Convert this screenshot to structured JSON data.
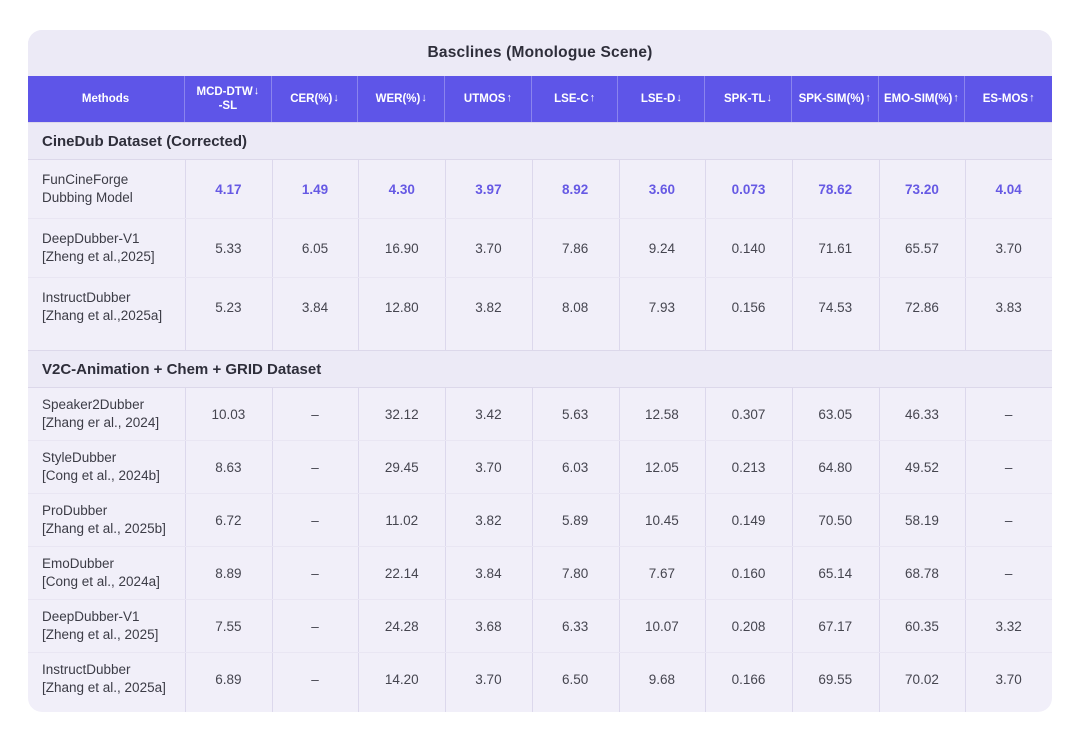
{
  "title": "Basclines (Monologue Scene)",
  "columns": [
    {
      "label": "Methods",
      "arrow": ""
    },
    {
      "label": "MCD-DTW",
      "label2": "-SL",
      "arrow": "↓"
    },
    {
      "label": "CER(%)",
      "arrow": " ↓"
    },
    {
      "label": "WER(%)",
      "arrow": " ↓"
    },
    {
      "label": "UTMOS",
      "arrow": "↑"
    },
    {
      "label": "LSE-C",
      "arrow": "↑"
    },
    {
      "label": "LSE-D",
      "arrow": " ↓"
    },
    {
      "label": "SPK-TL",
      "arrow": "↓"
    },
    {
      "label": "SPK-SIM(%)",
      "arrow": "↑"
    },
    {
      "label": "EMO-SIM(%)",
      "arrow": "↑"
    },
    {
      "label": "ES-MOS",
      "arrow": "↑"
    }
  ],
  "sections": [
    {
      "header": "CineDub Dataset (Corrected)",
      "rows": [
        {
          "name": "FunCineForge",
          "cite": "Dubbing Model",
          "highlight": true,
          "values": [
            "4.17",
            "1.49",
            "4.30",
            "3.97",
            "8.92",
            "3.60",
            "0.073",
            "78.62",
            "73.20",
            "4.04"
          ]
        },
        {
          "name": "DeepDubber-V1",
          "cite": "[Zheng et al.,2025]",
          "highlight": false,
          "values": [
            "5.33",
            "6.05",
            "16.90",
            "3.70",
            "7.86",
            "9.24",
            "0.140",
            "71.61",
            "65.57",
            "3.70"
          ]
        },
        {
          "name": "InstructDubber",
          "cite": "[Zhang et al.,2025a]",
          "highlight": false,
          "values": [
            "5.23",
            "3.84",
            "12.80",
            "3.82",
            "8.08",
            "7.93",
            "0.156",
            "74.53",
            "72.86",
            "3.83"
          ]
        }
      ]
    },
    {
      "header": "V2C-Animation + Chem + GRID Dataset",
      "rows": [
        {
          "name": "Speaker2Dubber",
          "cite": "[Zhang er al., 2024]",
          "highlight": false,
          "values": [
            "10.03",
            "–",
            "32.12",
            "3.42",
            "5.63",
            "12.58",
            "0.307",
            "63.05",
            "46.33",
            "–"
          ]
        },
        {
          "name": "StyleDubber",
          "cite": "[Cong et al., 2024b]",
          "highlight": false,
          "values": [
            "8.63",
            "–",
            "29.45",
            "3.70",
            "6.03",
            "12.05",
            "0.213",
            "64.80",
            "49.52",
            "–"
          ]
        },
        {
          "name": "ProDubber",
          "cite": "[Zhang et al., 2025b]",
          "highlight": false,
          "values": [
            "6.72",
            "–",
            "11.02",
            "3.82",
            "5.89",
            "10.45",
            "0.149",
            "70.50",
            "58.19",
            "–"
          ]
        },
        {
          "name": "EmoDubber",
          "cite": "[Cong et al., 2024a]",
          "highlight": false,
          "values": [
            "8.89",
            "–",
            "22.14",
            "3.84",
            "7.80",
            "7.67",
            "0.160",
            "65.14",
            "68.78",
            "–"
          ]
        },
        {
          "name": "DeepDubber-V1",
          "cite": "[Zheng et al., 2025]",
          "highlight": false,
          "values": [
            "7.55",
            "–",
            "24.28",
            "3.68",
            "6.33",
            "10.07",
            "0.208",
            "67.17",
            "60.35",
            "3.32"
          ]
        },
        {
          "name": "InstructDubber",
          "cite": "[Zhang et al., 2025a]",
          "highlight": false,
          "values": [
            "6.89",
            "–",
            "14.20",
            "3.70",
            "6.50",
            "9.68",
            "0.166",
            "69.55",
            "70.02",
            "3.70"
          ]
        }
      ]
    }
  ],
  "colors": {
    "header_bg": "#5e55e8",
    "card_bg": "#f1eff9",
    "band_bg": "#eceaf6",
    "highlight": "#6659e4",
    "header_text": "#ffffff",
    "heading_text": "#2e2e3a",
    "body_text": "#45454f"
  }
}
